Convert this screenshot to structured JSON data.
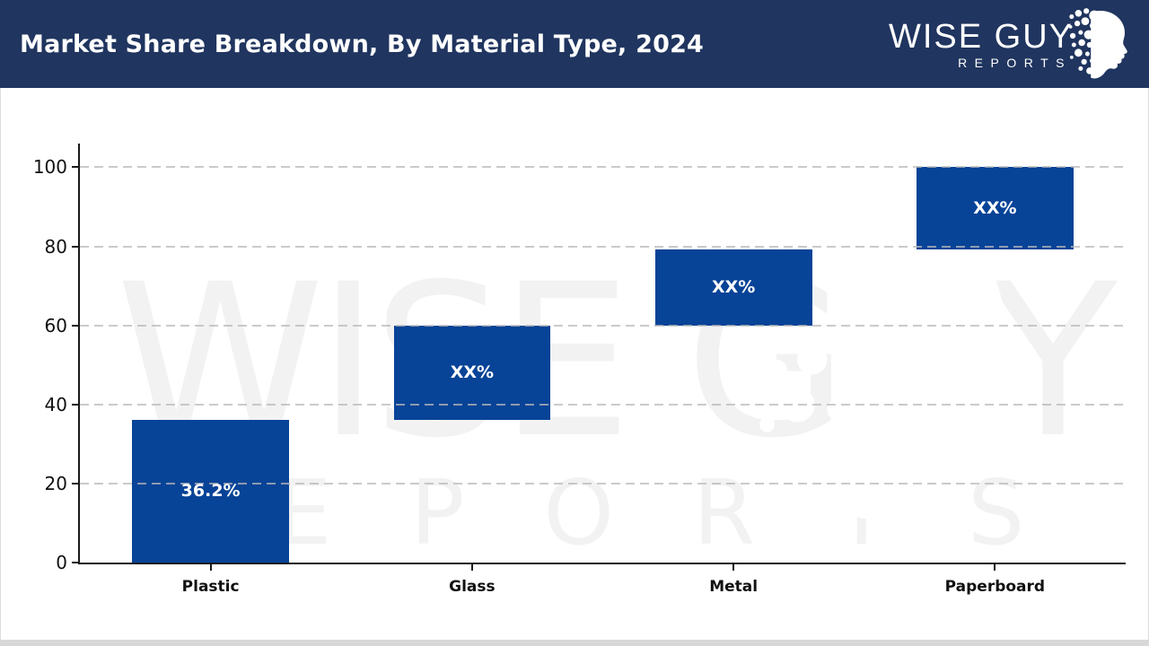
{
  "header": {
    "title": "Market Share Breakdown, By Material Type, 2024",
    "logo": {
      "line1": "WISE GUY",
      "line2": "REPORTS"
    }
  },
  "watermark": {
    "line1": "WISE GUY",
    "line2": "R E P O R T S"
  },
  "colors": {
    "header_bg": "#20355f",
    "bar": "#074397",
    "watermark": "#f2f2f3",
    "footer_strip": "#d8d8d8"
  },
  "chart_data": {
    "type": "bar",
    "variant": "waterfall",
    "title": "Market Share Breakdown, By Material Type, 2024",
    "xlabel": "",
    "ylabel": "",
    "categories": [
      "Plastic",
      "Glass",
      "Metal",
      "Paperboard"
    ],
    "segments": [
      {
        "category": "Plastic",
        "start": 0,
        "end": 36.2,
        "value": 36.2,
        "label": "36.2%"
      },
      {
        "category": "Glass",
        "start": 36.2,
        "end": 60,
        "value": 23.8,
        "label": "XX%"
      },
      {
        "category": "Metal",
        "start": 60,
        "end": 79.3,
        "value": 19.3,
        "label": "XX%"
      },
      {
        "category": "Paperboard",
        "start": 79.3,
        "end": 100,
        "value": 20.7,
        "label": "XX%"
      }
    ],
    "yticks": [
      0,
      20,
      40,
      60,
      80,
      100
    ],
    "ylim": [
      0,
      106
    ],
    "grid": "dashed-horizontal-over-bars",
    "legend": "none",
    "bar_width_frac": 0.6,
    "bar_color": "#074397",
    "label_color": "#ffffff"
  }
}
